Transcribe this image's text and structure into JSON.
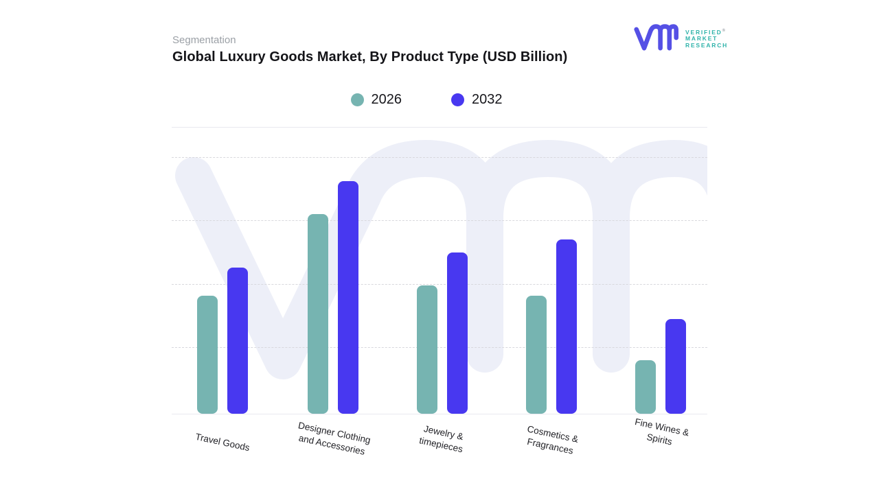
{
  "header": {
    "eyebrow": "Segmentation",
    "title": "Global Luxury Goods Market, By Product Type (USD Billion)"
  },
  "logo": {
    "glyph": "vmr-monogram",
    "glyph_color": "#5550e5",
    "text_color": "#2fb3aa",
    "brand_lines": [
      "VERIFIED",
      "MARKET",
      "RESEARCH"
    ],
    "registered_mark": "®"
  },
  "legend": {
    "items": [
      {
        "label": "2026",
        "color": "#76b4b1"
      },
      {
        "label": "2032",
        "color": "#4838f0"
      }
    ]
  },
  "watermark": {
    "name": "vmr-watermark",
    "color": "#edeff8"
  },
  "chart_data": {
    "type": "bar",
    "title": "Global Luxury Goods Market, By Product Type (USD Billion)",
    "unit": "USD Billion",
    "categories": [
      "Travel Goods",
      "Designer Clothing and Accessories",
      "Jewelry & timepieces",
      "Cosmetics & Fragrances",
      "Fine Wines & Spirits"
    ],
    "category_label_lines": [
      [
        "Travel Goods"
      ],
      [
        "Designer Clothing",
        "and Accessories"
      ],
      [
        "Jewelry &",
        "timepieces"
      ],
      [
        "Cosmetics &",
        "Fragrances"
      ],
      [
        "Fine Wines &",
        "Spirits"
      ]
    ],
    "series": [
      {
        "name": "2026",
        "color": "#76b4b1",
        "values": [
          46,
          78,
          50,
          46,
          21
        ]
      },
      {
        "name": "2032",
        "color": "#4838f0",
        "values": [
          57,
          91,
          63,
          68,
          37
        ]
      }
    ],
    "xlabel": "",
    "ylabel": "",
    "ylim": [
      0,
      100
    ],
    "y_tick_labels_visible": false,
    "gridlines": {
      "visible": true,
      "style": "dashed",
      "values": [
        25,
        50,
        75,
        100
      ]
    },
    "legend_position": "top-center"
  }
}
